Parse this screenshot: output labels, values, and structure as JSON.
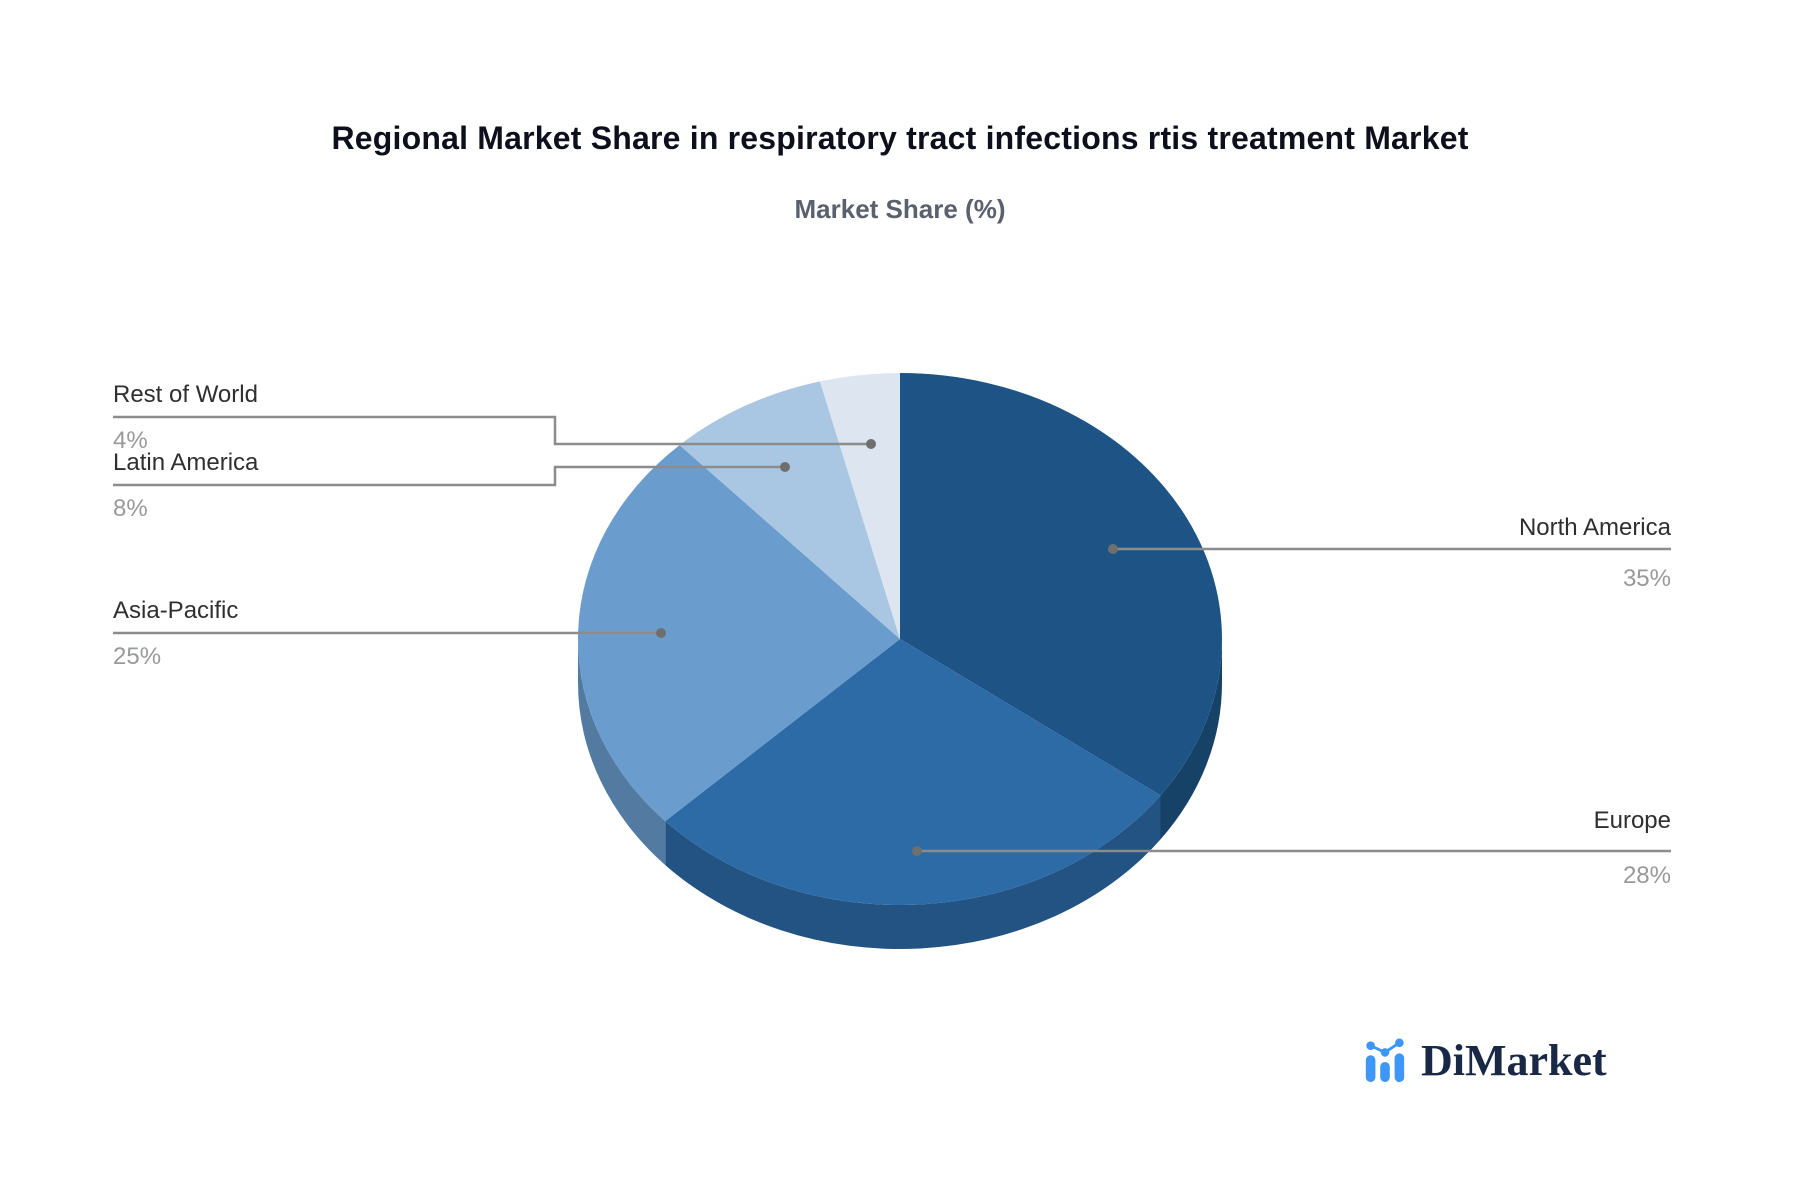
{
  "chart_data": {
    "type": "pie",
    "style": "3d",
    "title": "Regional Market Share in respiratory tract infections rtis treatment Market",
    "subtitle": "Market Share (%)",
    "unit": "%",
    "start_angle_deg": 0,
    "direction": "clockwise",
    "slices": [
      {
        "label": "North America",
        "value": 35,
        "display": "35%",
        "color": "#1D5485",
        "callout_side": "right"
      },
      {
        "label": "Europe",
        "value": 28,
        "display": "28%",
        "color": "#2D6BA7",
        "callout_side": "right"
      },
      {
        "label": "Asia-Pacific",
        "value": 25,
        "display": "25%",
        "color": "#6B9CCE",
        "callout_side": "left"
      },
      {
        "label": "Latin America",
        "value": 8,
        "display": "8%",
        "color": "#A9C6E3",
        "callout_side": "left"
      },
      {
        "label": "Rest of World",
        "value": 4,
        "display": "4%",
        "color": "#DDE5F0",
        "callout_side": "left"
      }
    ],
    "leader_line_color": "#8c8c8c",
    "leader_dot_color": "#6f6f6f",
    "label_color": "#2f2f2f",
    "value_color": "#98999b",
    "legend_position": "callout-labels",
    "grid": "off"
  },
  "brand": {
    "name": "DiMarket",
    "icon": "bar-line-chart-icon",
    "icon_color": "#3E97F6",
    "text_color": "#182845"
  }
}
